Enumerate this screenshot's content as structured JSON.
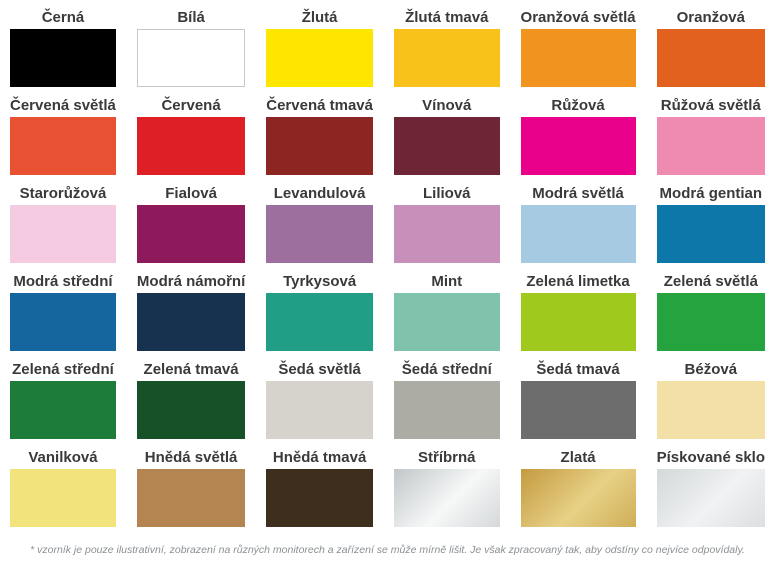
{
  "page": {
    "background": "#ffffff",
    "label_color": "#3a3a3a"
  },
  "footnote": {
    "text": "* vzorník je pouze ilustrativní, zobrazení na různých monitorech a zařízení se může mírně lišit. Je však zpracovaný tak, aby odstíny co nejvíce odpovídaly."
  },
  "palette": {
    "rows": 6,
    "cols": 6,
    "swatches": [
      {
        "label": "Černá",
        "color": "#000000"
      },
      {
        "label": "Bílá",
        "color": "#ffffff",
        "border": "#c8c8c8"
      },
      {
        "label": "Žlutá",
        "color": "#ffe600"
      },
      {
        "label": "Žlutá tmavá",
        "color": "#f9c21b"
      },
      {
        "label": "Oranžová světlá",
        "color": "#f0931f"
      },
      {
        "label": "Oranžová",
        "color": "#e2611f"
      },
      {
        "label": "Červená světlá",
        "color": "#e85233"
      },
      {
        "label": "Červená",
        "color": "#df1f26"
      },
      {
        "label": "Červená tmavá",
        "color": "#8d2522"
      },
      {
        "label": "Vínová",
        "color": "#6e2637"
      },
      {
        "label": "Růžová",
        "color": "#e9008b"
      },
      {
        "label": "Růžová světlá",
        "color": "#ef8ab0"
      },
      {
        "label": "Starorůžová",
        "color": "#f4cbe0"
      },
      {
        "label": "Fialová",
        "color": "#8f1a5b"
      },
      {
        "label": "Levandulová",
        "color": "#9c6f9f"
      },
      {
        "label": "Liliová",
        "color": "#c98fbb"
      },
      {
        "label": "Modrá světlá",
        "color": "#a7cae3"
      },
      {
        "label": "Modrá gentian",
        "color": "#0e77a9"
      },
      {
        "label": "Modrá střední",
        "color": "#15669f"
      },
      {
        "label": "Modrá námořní",
        "color": "#16324f"
      },
      {
        "label": "Tyrkysová",
        "color": "#219e86"
      },
      {
        "label": "Mint",
        "color": "#7fc3ad"
      },
      {
        "label": "Zelená limetka",
        "color": "#9fca1d"
      },
      {
        "label": "Zelená světlá",
        "color": "#25a33e"
      },
      {
        "label": "Zelená střední",
        "color": "#1e7c3a"
      },
      {
        "label": "Zelená tmavá",
        "color": "#165127"
      },
      {
        "label": "Šedá světlá",
        "color": "#d5d3cc"
      },
      {
        "label": "Šedá střední",
        "color": "#acaba4"
      },
      {
        "label": "Šedá tmavá",
        "color": "#6d6d6d"
      },
      {
        "label": "Béžová",
        "color": "#f3e0a6"
      },
      {
        "label": "Vanilková",
        "color": "#f3e37d"
      },
      {
        "label": "Hnědá světlá",
        "color": "#b48550"
      },
      {
        "label": "Hnědá tmavá",
        "color": "#3e2e1d"
      },
      {
        "label": "Stříbrná",
        "gradient": [
          "#c2c6c8",
          "#f6f8f8",
          "#d5d8d9"
        ]
      },
      {
        "label": "Zlatá",
        "gradient": [
          "#c49a3f",
          "#e7d186",
          "#cfae58"
        ]
      },
      {
        "label": "Pískované sklo",
        "gradient": [
          "#d4d8d9",
          "#f0f2f3",
          "#dcdfe0"
        ]
      }
    ]
  },
  "chart_data": {
    "type": "table",
    "title": "",
    "columns": [
      "label",
      "color"
    ],
    "rows": [
      [
        "Černá",
        "#000000"
      ],
      [
        "Bílá",
        "#ffffff"
      ],
      [
        "Žlutá",
        "#ffe600"
      ],
      [
        "Žlutá tmavá",
        "#f9c21b"
      ],
      [
        "Oranžová světlá",
        "#f0931f"
      ],
      [
        "Oranžová",
        "#e2611f"
      ],
      [
        "Červená světlá",
        "#e85233"
      ],
      [
        "Červená",
        "#df1f26"
      ],
      [
        "Červená tmavá",
        "#8d2522"
      ],
      [
        "Vínová",
        "#6e2637"
      ],
      [
        "Růžová",
        "#e9008b"
      ],
      [
        "Růžová světlá",
        "#ef8ab0"
      ],
      [
        "Starorůžová",
        "#f4cbe0"
      ],
      [
        "Fialová",
        "#8f1a5b"
      ],
      [
        "Levandulová",
        "#9c6f9f"
      ],
      [
        "Liliová",
        "#c98fbb"
      ],
      [
        "Modrá světlá",
        "#a7cae3"
      ],
      [
        "Modrá gentian",
        "#0e77a9"
      ],
      [
        "Modrá střední",
        "#15669f"
      ],
      [
        "Modrá námořní",
        "#16324f"
      ],
      [
        "Tyrkysová",
        "#219e86"
      ],
      [
        "Mint",
        "#7fc3ad"
      ],
      [
        "Zelená limetka",
        "#9fca1d"
      ],
      [
        "Zelená světlá",
        "#25a33e"
      ],
      [
        "Zelená střední",
        "#1e7c3a"
      ],
      [
        "Zelená tmavá",
        "#165127"
      ],
      [
        "Šedá světlá",
        "#d5d3cc"
      ],
      [
        "Šedá střední",
        "#acaba4"
      ],
      [
        "Šedá tmavá",
        "#6d6d6d"
      ],
      [
        "Béžová",
        "#f3e0a6"
      ],
      [
        "Vanilková",
        "#f3e37d"
      ],
      [
        "Hnědá světlá",
        "#b48550"
      ],
      [
        "Hnědá tmavá",
        "#3e2e1d"
      ],
      [
        "Stříbrná",
        "silver-gradient"
      ],
      [
        "Zlatá",
        "gold-gradient"
      ],
      [
        "Pískované sklo",
        "frosted-gradient"
      ]
    ],
    "layout": "6x6 grid of labeled color swatches, footnote at bottom"
  }
}
